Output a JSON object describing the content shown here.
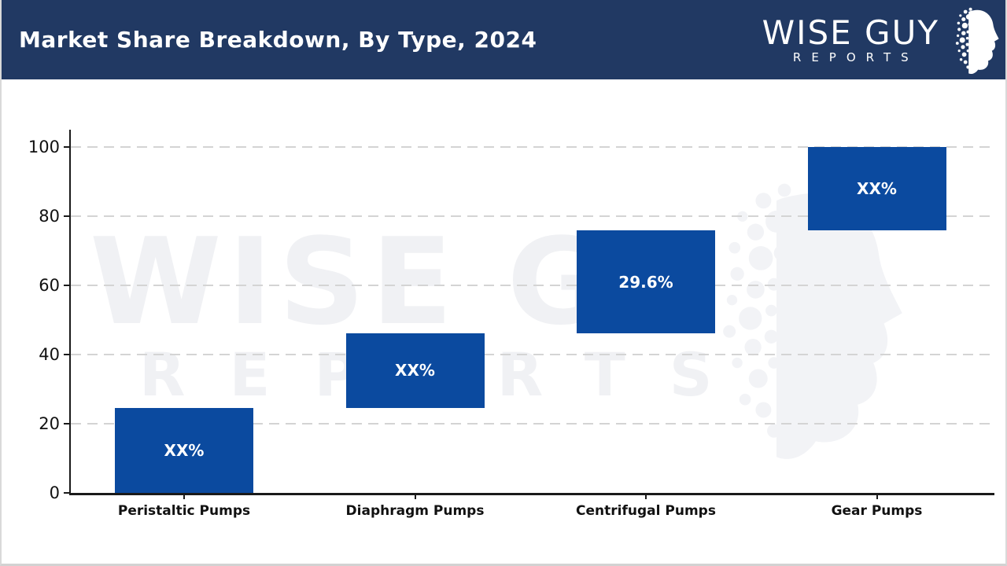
{
  "header": {
    "title": "Market Share Breakdown, By Type, 2024",
    "logo": {
      "line1": "WISE GUY",
      "line2": "REPORTS"
    }
  },
  "watermark": {
    "line1": "WISE GU",
    "line2": "REPORTS"
  },
  "colors": {
    "header_bg": "#213963",
    "bar": "#0B4A9F",
    "bar_label": "#FFFFFF",
    "grid": "#D4D4D4",
    "axis": "#1A1A1A",
    "watermark": "#F0F1F4",
    "border": "#D9D9D9"
  },
  "chart_data": {
    "type": "bar",
    "subtype": "floating-waterfall",
    "title": "Market Share Breakdown, By Type, 2024",
    "categories": [
      "Peristaltic Pumps",
      "Diaphragm Pumps",
      "Centrifugal Pumps",
      "Gear Pumps"
    ],
    "bars": [
      {
        "category": "Peristaltic Pumps",
        "base": 0,
        "top": 24.6,
        "value": 24.6,
        "label": "XX%"
      },
      {
        "category": "Diaphragm Pumps",
        "base": 24.6,
        "top": 46.2,
        "value": 21.6,
        "label": "XX%"
      },
      {
        "category": "Centrifugal Pumps",
        "base": 46.2,
        "top": 75.8,
        "value": 29.6,
        "label": "29.6%"
      },
      {
        "category": "Gear Pumps",
        "base": 75.8,
        "top": 100,
        "value": 24.2,
        "label": "XX%"
      }
    ],
    "xlabel": "",
    "ylabel": "",
    "ylim": [
      0,
      100
    ],
    "yticks": [
      0,
      20,
      40,
      60,
      80,
      100
    ],
    "grid": "horizontal-dashed",
    "legend": "none",
    "bar_color": "#0B4A9F"
  }
}
